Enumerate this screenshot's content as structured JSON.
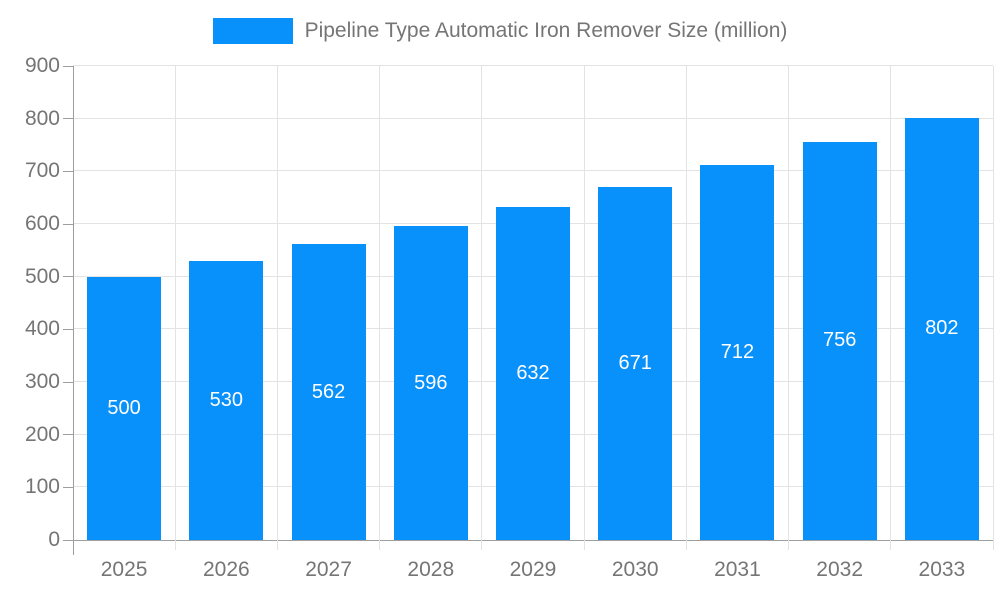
{
  "legend": {
    "label": "Pipeline Type Automatic Iron Remover Size (million)"
  },
  "chart_data": {
    "type": "bar",
    "title": "Pipeline Type Automatic Iron Remover Size (million)",
    "categories": [
      "2025",
      "2026",
      "2027",
      "2028",
      "2029",
      "2030",
      "2031",
      "2032",
      "2033"
    ],
    "values": [
      500,
      530,
      562,
      596,
      632,
      671,
      712,
      756,
      802
    ],
    "value_labels": [
      "500",
      "530",
      "562",
      "596",
      "632",
      "671",
      "712",
      "756",
      "802"
    ],
    "xlabel": "",
    "ylabel": "",
    "ylim": [
      0,
      900
    ],
    "yticks": [
      0,
      100,
      200,
      300,
      400,
      500,
      600,
      700,
      800,
      900
    ],
    "grid": true,
    "legend_position": "top-center",
    "colors": {
      "bar": "#0890fb",
      "bar_value_text": "#ffffff",
      "axis_text": "#757575",
      "axis_line": "#9e9e9e",
      "gridline": "#e3e3e3",
      "background": "#ffffff"
    }
  }
}
